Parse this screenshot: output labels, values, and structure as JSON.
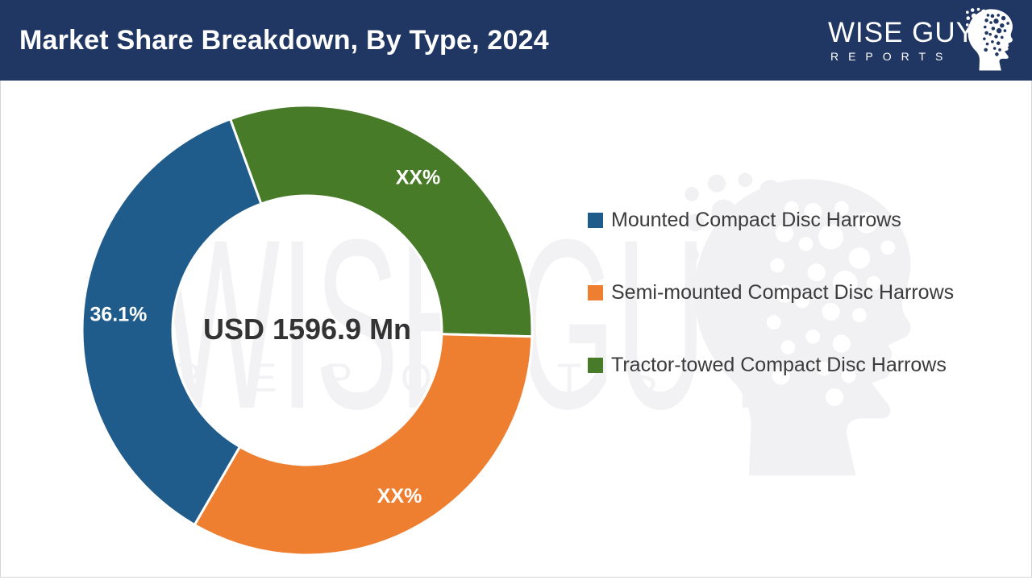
{
  "header": {
    "title": "Market Share Breakdown, By Type, 2024",
    "bg_color": "#213763",
    "logo": {
      "line1": "WISE GUY",
      "line2": "REPORTS"
    }
  },
  "watermark": {
    "line1": "WISE GUY",
    "line2": "REPORTS"
  },
  "chart_data": {
    "type": "donut",
    "title": "Market Share Breakdown, By Type, 2024",
    "center_label": "USD 1596.9 Mn",
    "total_value": "USD 1596.9 Mn",
    "start_angle_deg": 340,
    "direction": "clockwise",
    "units": "percent",
    "segments": [
      {
        "label": "Tractor-towed Compact Disc Harrows",
        "value_pct": 31.0,
        "display_label": "XX%",
        "color": "#477b28"
      },
      {
        "label": "Semi-mounted Compact Disc Harrows",
        "value_pct": 32.9,
        "display_label": "XX%",
        "color": "#ee7f31"
      },
      {
        "label": "Mounted Compact Disc Harrows",
        "value_pct": 36.1,
        "display_label": "36.1%",
        "color": "#1f5c8b"
      }
    ]
  },
  "legend": {
    "items": [
      {
        "label": "Mounted Compact Disc Harrows",
        "color": "#1f5c8b"
      },
      {
        "label": "Semi-mounted Compact Disc Harrows",
        "color": "#ee7f31"
      },
      {
        "label": "Tractor-towed Compact Disc Harrows",
        "color": "#477b28"
      }
    ]
  }
}
